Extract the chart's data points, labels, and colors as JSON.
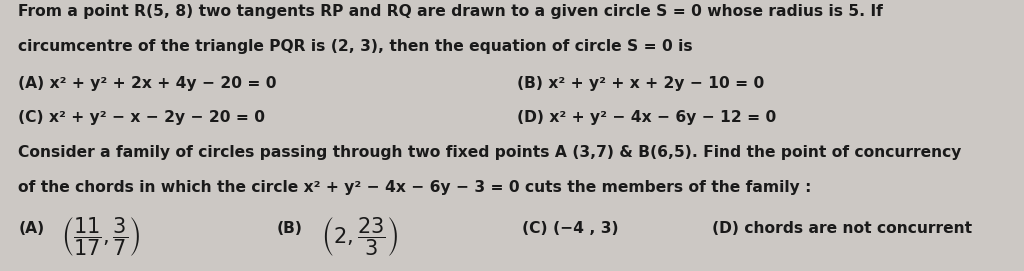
{
  "bg_color": "#ccc8c4",
  "text_color": "#1a1a1a",
  "figsize": [
    10.24,
    2.71
  ],
  "dpi": 100,
  "para1_line1": "From a point R(5, 8) two tangents RP and RQ are drawn to a given circle S = 0 whose radius is 5. If",
  "para1_line2": "circumcentre of the triangle PQR is (2, 3), then the equation of circle S = 0 is",
  "optA1": "(A) x² + y² + 2x + 4y − 20 = 0",
  "optB1": "(B) x² + y² + x + 2y − 10 = 0",
  "optC1": "(C) x² + y² − x − 2y − 20 = 0",
  "optD1": "(D) x² + y² − 4x − 6y − 12 = 0",
  "para2_line1": "Consider a family of circles passing through two fixed points A (3,7) & B(6,5). Find the point of concurrency",
  "para2_line2": "of the chords in which the circle x² + y² − 4x − 6y − 3 = 0 cuts the members of the family :",
  "optC2": "(C) (−4 , 3)",
  "optD2": "(D) chords are not concurrent",
  "font_size_body": 11.2,
  "font_size_opts": 11.2,
  "font_size_math": 13.0
}
